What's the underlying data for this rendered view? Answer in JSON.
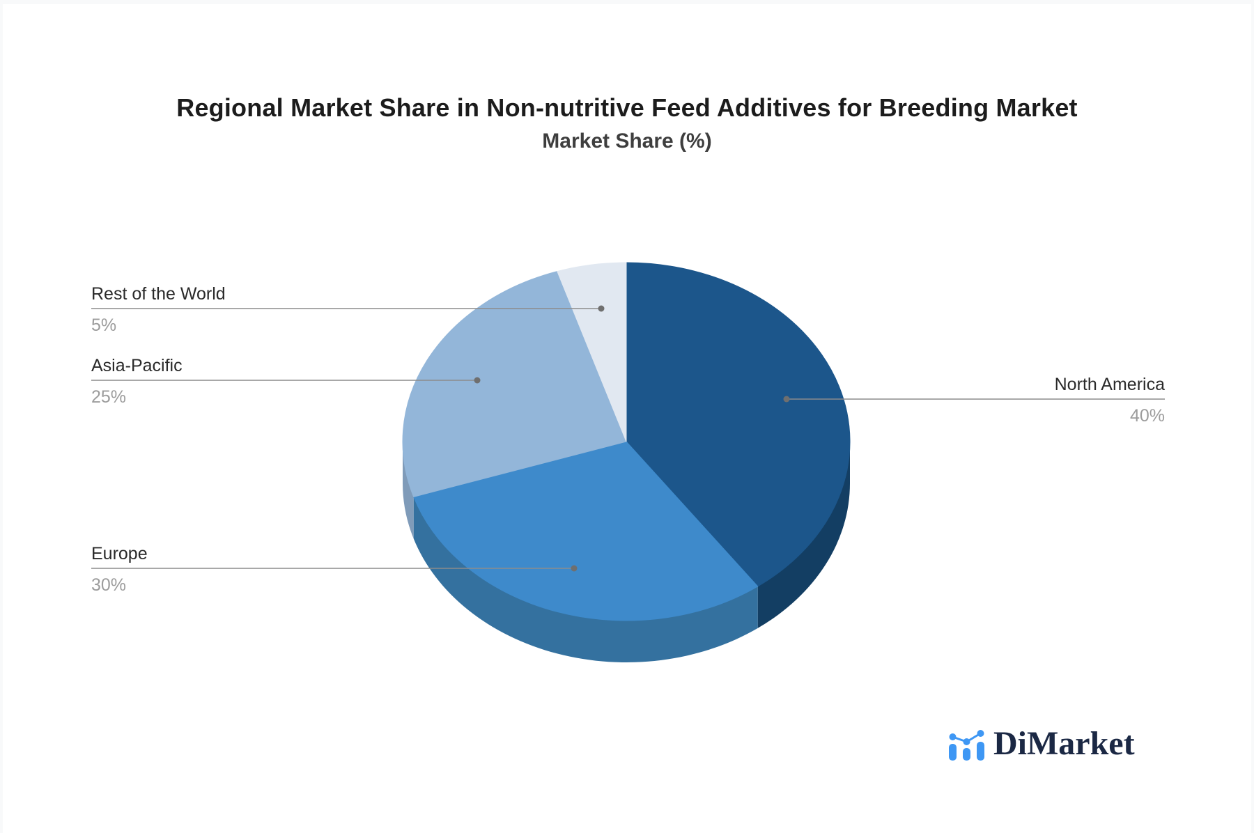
{
  "header": {
    "title": "Regional Market Share in Non-nutritive Feed Additives for Breeding Market",
    "subtitle": "Market Share (%)"
  },
  "chart_data": {
    "type": "pie",
    "style": "3d",
    "title": "Regional Market Share in Non-nutritive Feed Additives for Breeding Market",
    "subtitle": "Market Share (%)",
    "unit": "%",
    "start_angle_deg": 0,
    "direction": "clockwise",
    "legend": "none",
    "slices": [
      {
        "label": "North America",
        "value": 40,
        "percent_label": "40%",
        "color": "#1c568b",
        "side_color": "#133e63",
        "label_side": "right"
      },
      {
        "label": "Europe",
        "value": 30,
        "percent_label": "30%",
        "color": "#3e8acb",
        "side_color": "#34719f",
        "label_side": "left"
      },
      {
        "label": "Asia-Pacific",
        "value": 25,
        "percent_label": "25%",
        "color": "#93b6d9",
        "side_color": "#7f9bb9",
        "label_side": "left"
      },
      {
        "label": "Rest of the World",
        "value": 5,
        "percent_label": "5%",
        "color": "#e1e8f1",
        "label_side": "left"
      }
    ],
    "leader_line_color": "#8c8c8c",
    "leader_dot_color": "#6f6f6f"
  },
  "colors": {
    "page_background": "#ffffff",
    "page_edge": "#f8f9fa",
    "title_text": "#1c1c1c",
    "subtitle_text": "#3e3e3e",
    "label_text": "#2a2a2a",
    "percent_text": "#9c9c9c"
  },
  "logo": {
    "text": "DiMarket",
    "icon": "bar-line-chart-icon",
    "icon_color": "#3e97f4",
    "text_color": "#1b2844"
  }
}
